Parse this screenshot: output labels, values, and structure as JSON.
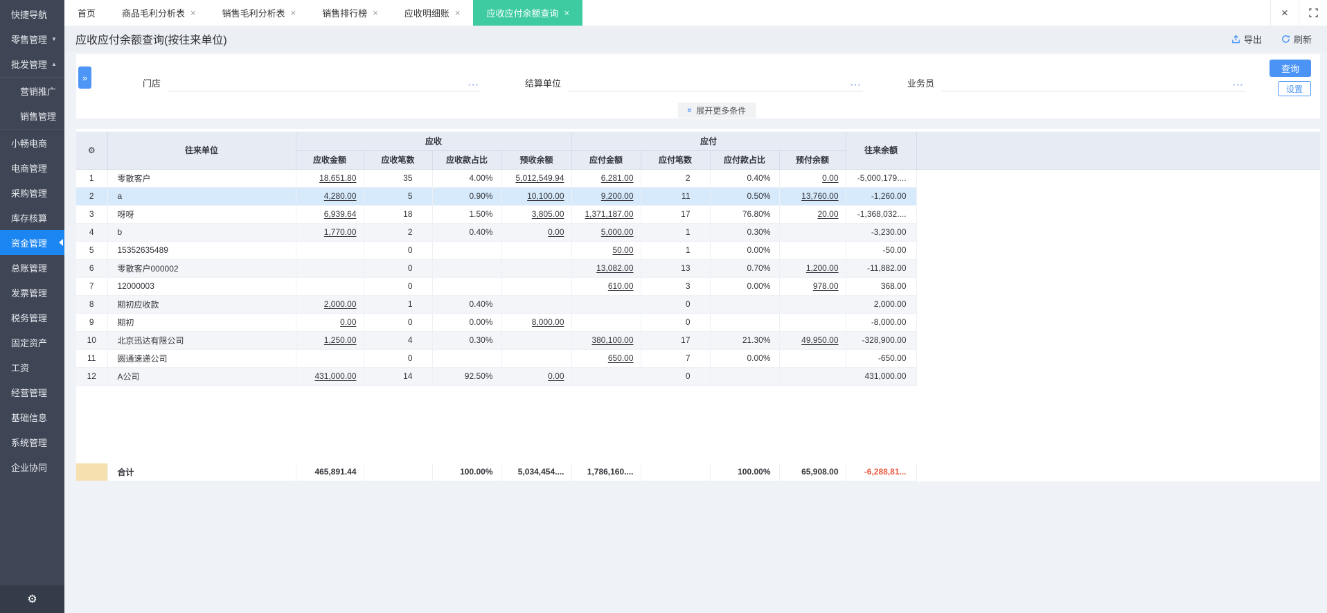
{
  "colors": {
    "accent_blue": "#4B94F5",
    "active_tab_green": "#3ECBA2",
    "sidebar_bg": "#3E4554",
    "sidebar_active_blue": "#1B85F2",
    "negative_red": "#F0413D",
    "total_negative_red": "#E8583D",
    "table_header_bg": "#E7EBF4",
    "selected_row_bg": "#D7EAFB",
    "total_row_bg": "#FBF0D6"
  },
  "sidebar": {
    "items": [
      {
        "label": "快捷导航"
      },
      {
        "label": "零售管理",
        "arrow": "down"
      },
      {
        "label": "批发管理",
        "arrow": "up",
        "divider_after": true
      },
      {
        "label": "营销推广",
        "sub": true
      },
      {
        "label": "销售管理",
        "sub": true,
        "divider_after": true
      },
      {
        "label": "小畅电商"
      },
      {
        "label": "电商管理"
      },
      {
        "label": "采购管理"
      },
      {
        "label": "库存核算"
      },
      {
        "label": "资金管理",
        "active": true
      },
      {
        "label": "总账管理"
      },
      {
        "label": "发票管理"
      },
      {
        "label": "税务管理"
      },
      {
        "label": "固定资产"
      },
      {
        "label": "工资"
      },
      {
        "label": "经营管理"
      },
      {
        "label": "基础信息"
      },
      {
        "label": "系统管理"
      },
      {
        "label": "企业协同"
      }
    ],
    "settings_icon": "⚙"
  },
  "tabs": [
    {
      "label": "首页",
      "closable": false
    },
    {
      "label": "商品毛利分析表",
      "closable": true
    },
    {
      "label": "销售毛利分析表",
      "closable": true
    },
    {
      "label": "销售排行榜",
      "closable": true
    },
    {
      "label": "应收明细账",
      "closable": true
    },
    {
      "label": "应收应付余额查询",
      "closable": true,
      "active": true
    }
  ],
  "window_controls": {
    "close_icon": "×",
    "close_label": "关闭",
    "fullscreen_label": "全屏"
  },
  "page_header": {
    "title": "应收应付余额查询(按往来单位)",
    "export_label": "导出",
    "refresh_label": "刷新"
  },
  "filters": {
    "collapse_icon": "»",
    "fields": [
      {
        "label": "门店",
        "value": ""
      },
      {
        "label": "结算单位",
        "value": ""
      },
      {
        "label": "业务员",
        "value": ""
      }
    ],
    "more_icon": "»",
    "more_button": "展开更多条件",
    "query_button": "查询",
    "settings_button": "设置"
  },
  "table": {
    "header": {
      "gear_icon": "⚙",
      "unit_column": "往来单位",
      "receivable_group": "应收",
      "payable_group": "应付",
      "balance_column": "往来余额",
      "receivable_columns": [
        "应收金额",
        "应收笔数",
        "应收款占比",
        "预收余额"
      ],
      "payable_columns": [
        "应付金额",
        "应付笔数",
        "应付款占比",
        "预付余额"
      ]
    },
    "rows": [
      {
        "num": "1",
        "name": "零散客户",
        "ar_amount": "18,651.80",
        "ar_count": "35",
        "ar_pct": "4.00%",
        "ar_adv": "5,012,549.94",
        "ap_amount": "6,281.00",
        "ap_count": "2",
        "ap_pct": "0.40%",
        "ap_adv": "0.00",
        "balance": "-5,000,179....",
        "balance_negative": true
      },
      {
        "num": "2",
        "name": "a",
        "ar_amount": "4,280.00",
        "ar_count": "5",
        "ar_pct": "0.90%",
        "ar_adv": "10,100.00",
        "ap_amount": "9,200.00",
        "ap_count": "11",
        "ap_pct": "0.50%",
        "ap_adv": "13,760.00",
        "balance": "-1,260.00",
        "balance_negative": true,
        "selected": true
      },
      {
        "num": "3",
        "name": "呀呀",
        "ar_amount": "6,939.64",
        "ar_count": "18",
        "ar_pct": "1.50%",
        "ar_adv": "3,805.00",
        "ap_amount": "1,371,187.00",
        "ap_count": "17",
        "ap_pct": "76.80%",
        "ap_adv": "20.00",
        "balance": "-1,368,032....",
        "balance_negative": true
      },
      {
        "num": "4",
        "name": "b",
        "ar_amount": "1,770.00",
        "ar_count": "2",
        "ar_pct": "0.40%",
        "ar_adv": "0.00",
        "ap_amount": "5,000.00",
        "ap_count": "1",
        "ap_pct": "0.30%",
        "ap_adv": "",
        "balance": "-3,230.00",
        "balance_negative": true
      },
      {
        "num": "5",
        "name": "15352635489",
        "ar_amount": "",
        "ar_count": "0",
        "ar_pct": "",
        "ar_adv": "",
        "ap_amount": "50.00",
        "ap_count": "1",
        "ap_pct": "0.00%",
        "ap_adv": "",
        "balance": "-50.00",
        "balance_negative": true
      },
      {
        "num": "6",
        "name": "零散客户000002",
        "ar_amount": "",
        "ar_count": "0",
        "ar_pct": "",
        "ar_adv": "",
        "ap_amount": "13,082.00",
        "ap_count": "13",
        "ap_pct": "0.70%",
        "ap_adv": "1,200.00",
        "balance": "-11,882.00",
        "balance_negative": true
      },
      {
        "num": "7",
        "name": "12000003",
        "ar_amount": "",
        "ar_count": "0",
        "ar_pct": "",
        "ar_adv": "",
        "ap_amount": "610.00",
        "ap_count": "3",
        "ap_pct": "0.00%",
        "ap_adv": "978.00",
        "balance": "368.00",
        "balance_negative": false
      },
      {
        "num": "8",
        "name": "期初应收款",
        "ar_amount": "2,000.00",
        "ar_count": "1",
        "ar_pct": "0.40%",
        "ar_adv": "",
        "ap_amount": "",
        "ap_count": "0",
        "ap_pct": "",
        "ap_adv": "",
        "balance": "2,000.00",
        "balance_negative": false
      },
      {
        "num": "9",
        "name": "期初",
        "ar_amount": "0.00",
        "ar_count": "0",
        "ar_pct": "0.00%",
        "ar_adv": "8,000.00",
        "ap_amount": "",
        "ap_count": "0",
        "ap_pct": "",
        "ap_adv": "",
        "balance": "-8,000.00",
        "balance_negative": true
      },
      {
        "num": "10",
        "name": "北京迅达有限公司",
        "ar_amount": "1,250.00",
        "ar_count": "4",
        "ar_pct": "0.30%",
        "ar_adv": "",
        "ap_amount": "380,100.00",
        "ap_count": "17",
        "ap_pct": "21.30%",
        "ap_adv": "49,950.00",
        "balance": "-328,900.00",
        "balance_negative": true
      },
      {
        "num": "11",
        "name": "圆通速递公司",
        "ar_amount": "",
        "ar_count": "0",
        "ar_pct": "",
        "ar_adv": "",
        "ap_amount": "650.00",
        "ap_count": "7",
        "ap_pct": "0.00%",
        "ap_adv": "",
        "balance": "-650.00",
        "balance_negative": true
      },
      {
        "num": "12",
        "name": "A公司",
        "ar_amount": "431,000.00",
        "ar_count": "14",
        "ar_pct": "92.50%",
        "ar_adv": "0.00",
        "ap_amount": "",
        "ap_count": "0",
        "ap_pct": "",
        "ap_adv": "",
        "balance": "431,000.00",
        "balance_negative": false
      }
    ],
    "total": {
      "label": "合计",
      "ar_amount": "465,891.44",
      "ar_count": "",
      "ar_pct": "100.00%",
      "ar_adv": "5,034,454....",
      "ap_amount": "1,786,160....",
      "ap_count": "",
      "ap_pct": "100.00%",
      "ap_adv": "65,908.00",
      "balance": "-6,288,81...",
      "balance_negative": true
    }
  }
}
